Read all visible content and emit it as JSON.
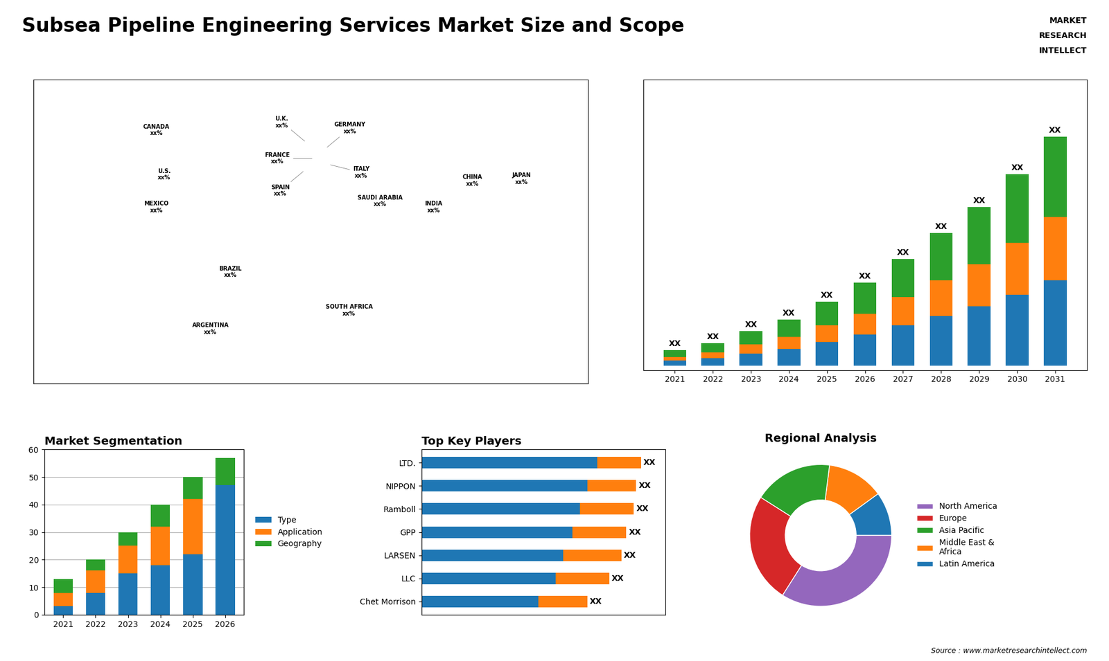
{
  "title": "Subsea Pipeline Engineering Services Market Size and Scope",
  "annotations": [
    "MARKET",
    "RESEARCH",
    "INTELLECT",
    "Source : www.marketresearchintellect.com"
  ],
  "chart_data": [
    {
      "type": "map",
      "labels": [
        "CANADA\nxx%",
        "U.S.\nxx%",
        "MEXICO\nxx%",
        "BRAZIL\nxx%",
        "ARGENTINA\nxx%",
        "U.K.\nxx%",
        "FRANCE\nxx%",
        "SPAIN\nxx%",
        "GERMANY\nxx%",
        "ITALY\nxx%",
        "SAUDI ARABIA\nxx%",
        "CHINA\nxx%",
        "INDIA\nxx%",
        "JAPAN\nxx%",
        "SOUTH AFRICA\nxx%"
      ],
      "x": [
        -100,
        -95,
        -100,
        -52,
        -65,
        -3,
        2,
        -4,
        10,
        12,
        45,
        105,
        80,
        137,
        25
      ],
      "y": [
        60,
        38,
        22,
        -10,
        -38,
        54,
        46,
        40,
        51,
        43,
        25,
        35,
        22,
        36,
        -29
      ],
      "xlim": [
        -180,
        180
      ],
      "ylim": [
        -65,
        85
      ],
      "tick_labels": false
    },
    {
      "type": "bar",
      "stacked": true,
      "categories": [
        "2021",
        "2022",
        "2023",
        "2024",
        "2025",
        "2026",
        "2027",
        "2028",
        "2029",
        "2030",
        "2031"
      ],
      "series": [
        {
          "values": [
            2,
            3,
            5,
            7,
            10,
            13,
            17,
            21,
            25,
            30,
            36
          ]
        },
        {
          "values": [
            1.5,
            2.5,
            4,
            5,
            7,
            9,
            12,
            15,
            18,
            22,
            27
          ]
        },
        {
          "values": [
            3,
            4,
            5.5,
            7.5,
            10,
            13,
            16,
            20,
            24,
            29,
            34
          ]
        }
      ],
      "annotations": [
        "XX",
        "XX",
        "XX",
        "XX",
        "XX",
        "XX",
        "XX",
        "XX",
        "XX",
        "XX",
        "XX"
      ],
      "ylim": [
        -2,
        121.25
      ],
      "tick_labels": "x"
    },
    {
      "type": "bar",
      "title": "Market Segmentation",
      "stacked": true,
      "categories": [
        "2021",
        "2022",
        "2023",
        "2024",
        "2025",
        "2026"
      ],
      "series": [
        {
          "name": "Type",
          "values": [
            3,
            8,
            15,
            18,
            22,
            47
          ]
        },
        {
          "name": "Application",
          "values": [
            5,
            8,
            10,
            14,
            20,
            0
          ]
        },
        {
          "name": "Geography",
          "values": [
            5,
            4,
            5,
            8,
            8,
            10
          ]
        }
      ],
      "ylim": [
        0,
        60
      ],
      "yticks": [
        0,
        10,
        20,
        30,
        40,
        50,
        60
      ],
      "grid": true,
      "legend": "center left"
    },
    {
      "type": "bar",
      "title": "Top Key Players",
      "orientation": "horizontal",
      "stacked": true,
      "categories": [
        "LTD.",
        "NIPPON",
        "Ramboll",
        "GPP",
        "LARSEN",
        "LLC",
        "Chet Morrison"
      ],
      "series": [
        {
          "values": [
            0.72,
            0.68,
            0.65,
            0.62,
            0.58,
            0.55,
            0.48
          ]
        },
        {
          "values": [
            0.18,
            0.2,
            0.22,
            0.22,
            0.24,
            0.22,
            0.2
          ]
        }
      ],
      "annotations": [
        "XX",
        "XX",
        "XX",
        "XX",
        "XX",
        "XX",
        "XX"
      ],
      "xlim": [
        0,
        1.0
      ],
      "tick_labels": "y"
    },
    {
      "type": "pie",
      "title": "Regional Analysis",
      "values": [
        0.1,
        0.13,
        0.18,
        0.25,
        0.34
      ],
      "labels": [
        "Latin America",
        "Middle East &\nAfrica",
        "Asia Pacific",
        "Europe",
        "North America"
      ],
      "legend": "center left"
    }
  ]
}
